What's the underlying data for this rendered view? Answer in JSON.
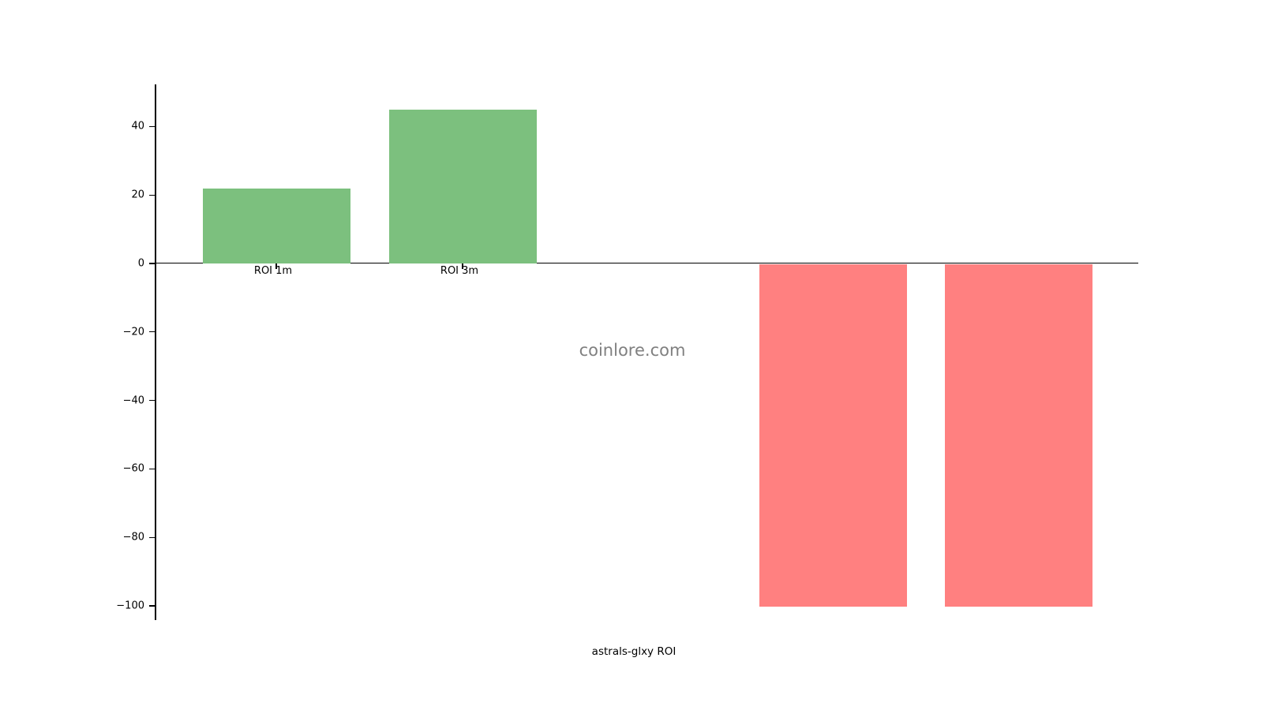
{
  "chart_data": {
    "type": "bar",
    "title": "",
    "xlabel": "astrals-glxy ROI",
    "ylabel": "",
    "watermark": "coinlore.com",
    "categories": [
      "ROI 1m",
      "ROI 3m",
      "",
      "",
      ""
    ],
    "values": [
      22,
      45,
      null,
      -100,
      -100
    ],
    "bars": [
      {
        "label": "ROI 1m",
        "value": 22,
        "color": "#7CC07E",
        "label_visible": true
      },
      {
        "label": "ROI 3m",
        "value": 45,
        "color": "#7CC07E",
        "label_visible": true
      },
      {
        "label": "",
        "value": null,
        "color": null,
        "label_visible": false
      },
      {
        "label": "",
        "value": -100,
        "color": "#FF8080",
        "label_visible": false
      },
      {
        "label": "",
        "value": -100,
        "color": "#FF8080",
        "label_visible": false
      }
    ],
    "yticks": [
      {
        "value": 40,
        "label": "40"
      },
      {
        "value": 20,
        "label": "20"
      },
      {
        "value": 0,
        "label": "0"
      },
      {
        "value": -20,
        "label": "−20"
      },
      {
        "value": -40,
        "label": "−40"
      },
      {
        "value": -60,
        "label": "−60"
      },
      {
        "value": -80,
        "label": "−80"
      },
      {
        "value": -100,
        "label": "−100"
      }
    ],
    "ylim": [
      -107,
      54
    ],
    "grid": false,
    "legend": "none",
    "colors": {
      "positive": "#7CC07E",
      "negative": "#FF8080",
      "axis": "#000000",
      "watermark_text": "#808080"
    }
  }
}
